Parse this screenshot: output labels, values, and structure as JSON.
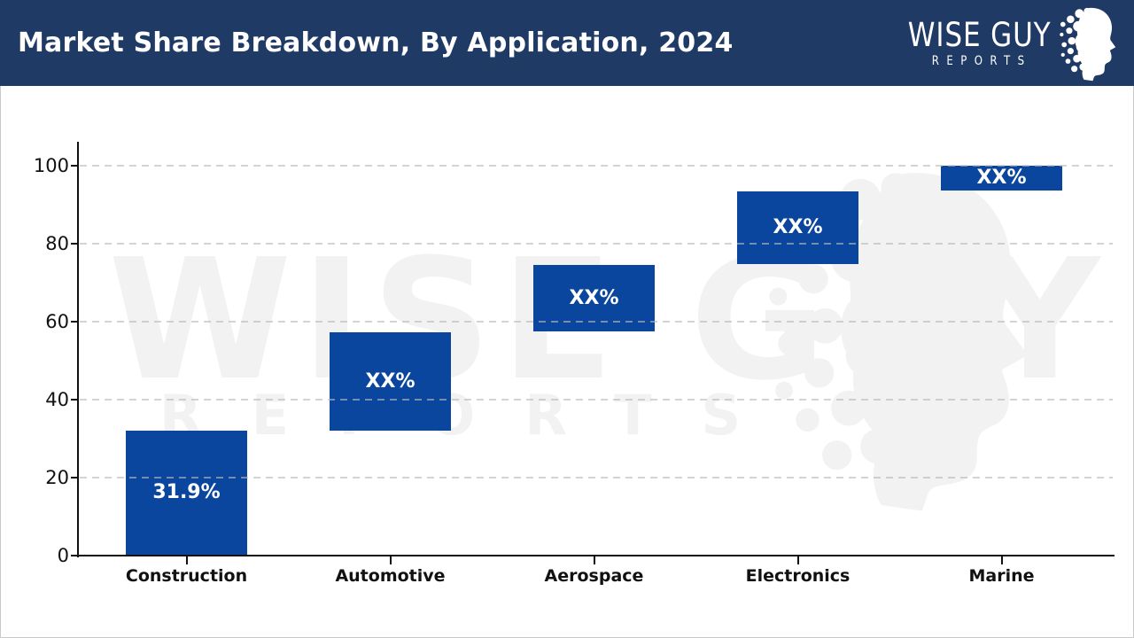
{
  "header": {
    "title": "Market Share Breakdown, By Application, 2024",
    "logo": {
      "line1": "WISE GUY",
      "line2": "REPORTS"
    }
  },
  "watermark": {
    "line1": "WISE GUY",
    "line2": "REPORTS"
  },
  "colors": {
    "header_bg": "#203a66",
    "bar": "#0a459e",
    "grid": "#d9d9d9",
    "axis": "#111111",
    "bar_label": "#ffffff"
  },
  "chart_data": {
    "type": "bar",
    "subtype": "waterfall",
    "title": "Market Share Breakdown, By Application, 2024",
    "categories": [
      "Construction",
      "Automotive",
      "Aerospace",
      "Electronics",
      "Marine"
    ],
    "bars": [
      {
        "category": "Construction",
        "start": 0,
        "end": 31.9,
        "label": "31.9%"
      },
      {
        "category": "Automotive",
        "start": 31.9,
        "end": 57.2,
        "label": "XX%"
      },
      {
        "category": "Aerospace",
        "start": 57.3,
        "end": 74.5,
        "label": "XX%"
      },
      {
        "category": "Electronics",
        "start": 74.6,
        "end": 93.4,
        "label": "XX%"
      },
      {
        "category": "Marine",
        "start": 93.6,
        "end": 100,
        "label": "XX%"
      }
    ],
    "y_ticks": [
      0,
      20,
      40,
      60,
      80,
      100
    ],
    "ylim": [
      0,
      105
    ],
    "xlabel": "",
    "ylabel": "",
    "grid": true,
    "legend": false,
    "bar_color": "#0a459e",
    "label_color": "#ffffff"
  }
}
